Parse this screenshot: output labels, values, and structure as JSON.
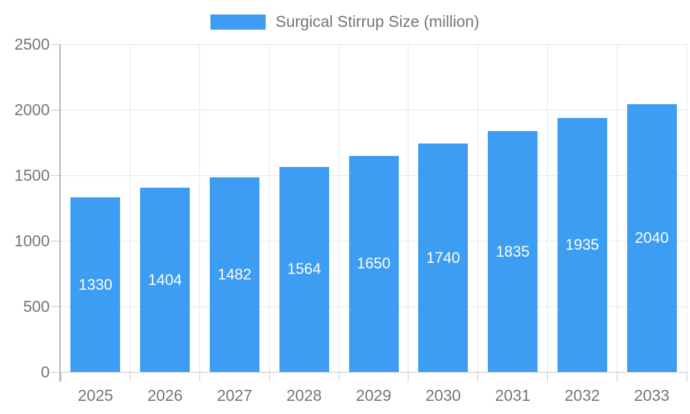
{
  "legend": {
    "label": "Surgical Stirrup Size (million)"
  },
  "chart_data": {
    "type": "bar",
    "title": "Surgical Stirrup Size (million)",
    "series_name": "Surgical Stirrup Size (million)",
    "categories": [
      "2025",
      "2026",
      "2027",
      "2028",
      "2029",
      "2030",
      "2031",
      "2032",
      "2033"
    ],
    "values": [
      1330,
      1404,
      1482,
      1564,
      1650,
      1740,
      1835,
      1935,
      2040
    ],
    "xlabel": "",
    "ylabel": "",
    "ylim": [
      0,
      2500
    ],
    "yticks": [
      0,
      500,
      1000,
      1500,
      2000,
      2500
    ],
    "grid": true,
    "legend_position": "top",
    "bar_labels": "centered-white"
  },
  "colors": {
    "bar": "#3d9df3",
    "bar_label": "#ffffff",
    "axis_text": "#757575",
    "gridline": "#e6e6e6",
    "tick": "#c9c9c9",
    "axis_line": "#b3b3b3",
    "background": "#ffffff"
  }
}
